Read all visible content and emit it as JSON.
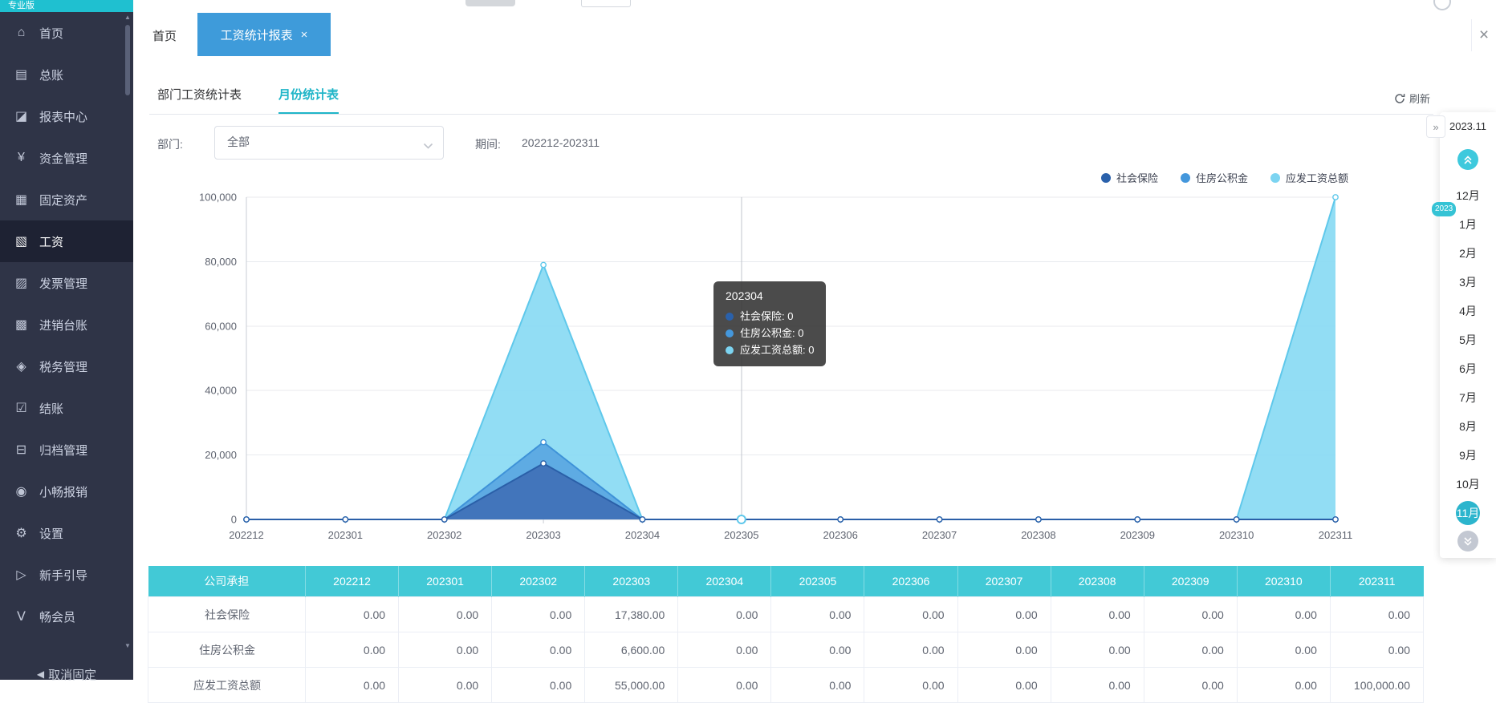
{
  "sidebar": {
    "brand": "专业版",
    "items": [
      {
        "key": "home",
        "label": "首页",
        "icon": "home-icon"
      },
      {
        "key": "general-ledger",
        "label": "总账",
        "icon": "ledger-icon"
      },
      {
        "key": "report-center",
        "label": "报表中心",
        "icon": "report-icon"
      },
      {
        "key": "funds",
        "label": "资金管理",
        "icon": "funds-icon"
      },
      {
        "key": "fixed-assets",
        "label": "固定资产",
        "icon": "assets-icon"
      },
      {
        "key": "salary",
        "label": "工资",
        "icon": "salary-icon",
        "active": true
      },
      {
        "key": "invoice",
        "label": "发票管理",
        "icon": "invoice-icon"
      },
      {
        "key": "purchase-sales",
        "label": "进销台账",
        "icon": "purchase-sales-icon"
      },
      {
        "key": "tax",
        "label": "税务管理",
        "icon": "tax-icon"
      },
      {
        "key": "closing",
        "label": "结账",
        "icon": "closing-icon"
      },
      {
        "key": "archive",
        "label": "归档管理",
        "icon": "archive-icon"
      },
      {
        "key": "reimburse",
        "label": "小畅报销",
        "icon": "reimburse-icon"
      },
      {
        "key": "settings",
        "label": "设置",
        "icon": "settings-icon"
      },
      {
        "key": "guide",
        "label": "新手引导",
        "icon": "guide-icon"
      },
      {
        "key": "member",
        "label": "畅会员",
        "icon": "member-icon"
      }
    ],
    "unpin_label": "取消固定"
  },
  "icons": {
    "home-icon": "⌂",
    "ledger-icon": "▤",
    "report-icon": "◪",
    "funds-icon": "¥",
    "assets-icon": "▦",
    "salary-icon": "▧",
    "invoice-icon": "▨",
    "purchase-sales-icon": "▩",
    "tax-icon": "◈",
    "closing-icon": "☑",
    "archive-icon": "⊟",
    "reimburse-icon": "◉",
    "settings-icon": "⚙",
    "guide-icon": "▷",
    "member-icon": "Ⅴ",
    "unpin-icon": "◀",
    "scroll-up-icon": "▲",
    "scroll-down-icon": "▼",
    "tab-close-icon": "×",
    "close-icon": "×",
    "collapse-icon": "»"
  },
  "tabbar": {
    "home_tab": "首页",
    "active_tab": "工资统计报表"
  },
  "subtabs": {
    "department": "部门工资统计表",
    "month": "月份统计表"
  },
  "toolbar": {
    "refresh_label": "刷新"
  },
  "filters": {
    "department_label": "部门:",
    "department_value": "全部",
    "period_label": "期间:",
    "period_value": "202212-202311"
  },
  "legend": [
    {
      "label": "社会保险",
      "color": "#2a61ab"
    },
    {
      "label": "住房公积金",
      "color": "#4497dc"
    },
    {
      "label": "应发工资总额",
      "color": "#7cd4f1"
    }
  ],
  "chart_data": {
    "type": "area",
    "stacked": true,
    "title": "",
    "xlabel": "",
    "ylabel": "",
    "categories": [
      "202212",
      "202301",
      "202302",
      "202303",
      "202304",
      "202305",
      "202306",
      "202307",
      "202308",
      "202309",
      "202310",
      "202311"
    ],
    "series": [
      {
        "name": "社会保险",
        "values": [
          0,
          0,
          0,
          17380,
          0,
          0,
          0,
          0,
          0,
          0,
          0,
          0
        ]
      },
      {
        "name": "住房公积金",
        "values": [
          0,
          0,
          0,
          6600,
          0,
          0,
          0,
          0,
          0,
          0,
          0,
          0
        ]
      },
      {
        "name": "应发工资总额",
        "values": [
          0,
          0,
          0,
          55000,
          0,
          0,
          0,
          0,
          0,
          0,
          0,
          100000
        ]
      }
    ],
    "colors": [
      {
        "line": "#2a5fa8",
        "fill": "#4072b8",
        "opacity": 0.95
      },
      {
        "line": "#3e92d8",
        "fill": "#5ca8e2",
        "opacity": 0.95
      },
      {
        "line": "#5fc8eb",
        "fill": "#86d9f3",
        "opacity": 0.9
      }
    ],
    "ylim": [
      0,
      100000
    ],
    "yticks": [
      0,
      20000,
      40000,
      60000,
      80000,
      100000
    ],
    "grid": true,
    "legend_position": "top-right",
    "hover_index": 5
  },
  "tooltip": {
    "title": "202304",
    "rows": [
      {
        "label": "社会保险",
        "value": "0",
        "color": "#2a61ab"
      },
      {
        "label": "住房公积金",
        "value": "0",
        "color": "#4497dc"
      },
      {
        "label": "应发工资总额",
        "value": "0",
        "color": "#7cd4f1"
      }
    ]
  },
  "calendar": {
    "current": "2023.11",
    "year_tag": "2023",
    "months": [
      "12月",
      "1月",
      "2月",
      "3月",
      "4月",
      "5月",
      "6月",
      "7月",
      "8月",
      "9月",
      "10月",
      "11月"
    ],
    "active_index": 11
  },
  "table": {
    "header": [
      "公司承担",
      "202212",
      "202301",
      "202302",
      "202303",
      "202304",
      "202305",
      "202306",
      "202307",
      "202308",
      "202309",
      "202310",
      "202311"
    ],
    "rows": [
      {
        "name": "社会保险",
        "values": [
          "0.00",
          "0.00",
          "0.00",
          "17,380.00",
          "0.00",
          "0.00",
          "0.00",
          "0.00",
          "0.00",
          "0.00",
          "0.00",
          "0.00"
        ]
      },
      {
        "name": "住房公积金",
        "values": [
          "0.00",
          "0.00",
          "0.00",
          "6,600.00",
          "0.00",
          "0.00",
          "0.00",
          "0.00",
          "0.00",
          "0.00",
          "0.00",
          "0.00"
        ]
      },
      {
        "name": "应发工资总额",
        "values": [
          "0.00",
          "0.00",
          "0.00",
          "55,000.00",
          "0.00",
          "0.00",
          "0.00",
          "0.00",
          "0.00",
          "0.00",
          "0.00",
          "100,000.00"
        ]
      }
    ]
  }
}
